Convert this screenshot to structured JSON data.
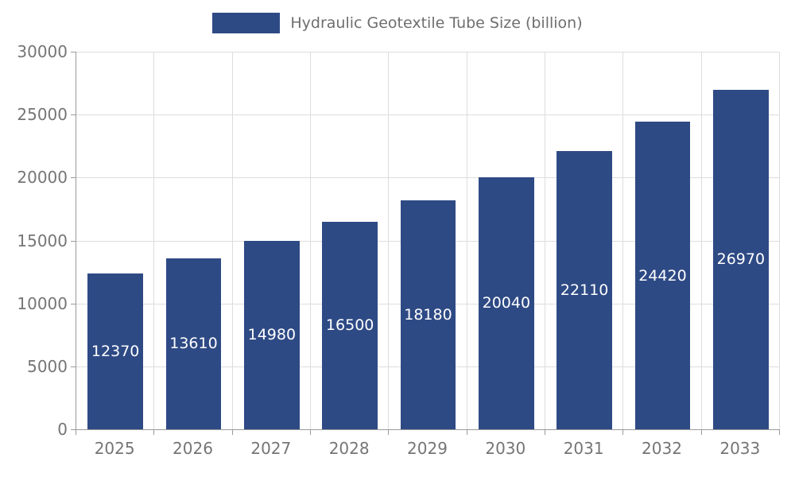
{
  "legend": {
    "label": "Hydraulic Geotextile Tube Size (billion)"
  },
  "chart_data": {
    "type": "bar",
    "title": "Hydraulic Geotextile Tube Size (billion)",
    "series_name": "Hydraulic Geotextile Tube Size (billion)",
    "categories": [
      "2025",
      "2026",
      "2027",
      "2028",
      "2029",
      "2030",
      "2031",
      "2032",
      "2033"
    ],
    "values": [
      12370,
      13610,
      14980,
      16500,
      18180,
      20040,
      22110,
      24420,
      26970
    ],
    "xlabel": "",
    "ylabel": "",
    "ylim": [
      0,
      30000
    ],
    "yticks": [
      0,
      5000,
      10000,
      15000,
      20000,
      25000,
      30000
    ],
    "grid": true,
    "legend_position": "top",
    "bar_value_labels_inside": true,
    "colors": {
      "bar": "#2E4A85",
      "bar_value_text": "#ffffff",
      "axis": "#9a9a9a",
      "grid": "#dddddd",
      "tick_text": "#757575",
      "legend_text": "#6e6e6e",
      "background": "#ffffff"
    }
  }
}
